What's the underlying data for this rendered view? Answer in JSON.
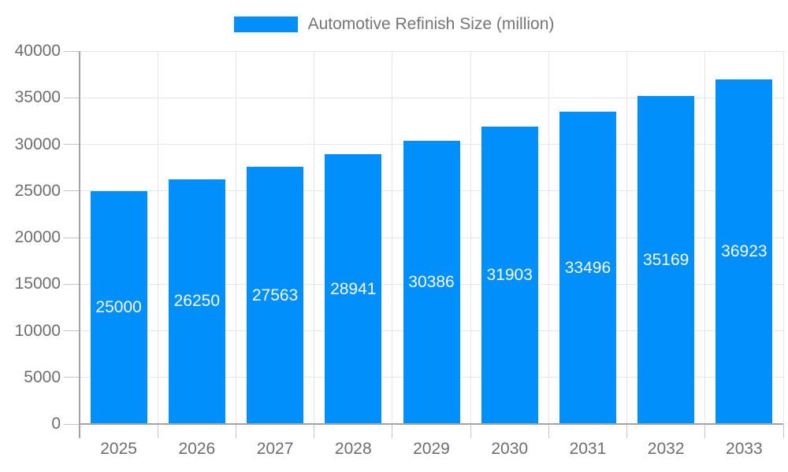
{
  "chart_data": {
    "type": "bar",
    "title": "Automotive Refinish Size (million)",
    "categories": [
      "2025",
      "2026",
      "2027",
      "2028",
      "2029",
      "2030",
      "2031",
      "2032",
      "2033"
    ],
    "series": [
      {
        "name": "Automotive Refinish Size (million)",
        "values": [
          25000,
          26250,
          27563,
          28941,
          30386,
          31903,
          33496,
          35169,
          36923
        ]
      }
    ],
    "xlabel": "",
    "ylabel": "",
    "ylim": [
      0,
      40000
    ],
    "yticks": [
      0,
      5000,
      10000,
      15000,
      20000,
      25000,
      30000,
      35000,
      40000
    ],
    "grid": true,
    "legend_position": "top",
    "data_labels": {
      "visible": true,
      "position": "middle-of-bar"
    }
  },
  "legend": {
    "label": "Automotive Refinish Size (million)",
    "swatch_color": "#008ffb"
  },
  "colors": {
    "bar": "#008ffb",
    "grid": "#e6e6e6",
    "axis_line": "#a3a3a3",
    "tick": "#c4c4c4",
    "axis_text": "#6e6e6e",
    "legend_text": "#757575",
    "data_label": "#ffffff",
    "background": "#ffffff"
  }
}
